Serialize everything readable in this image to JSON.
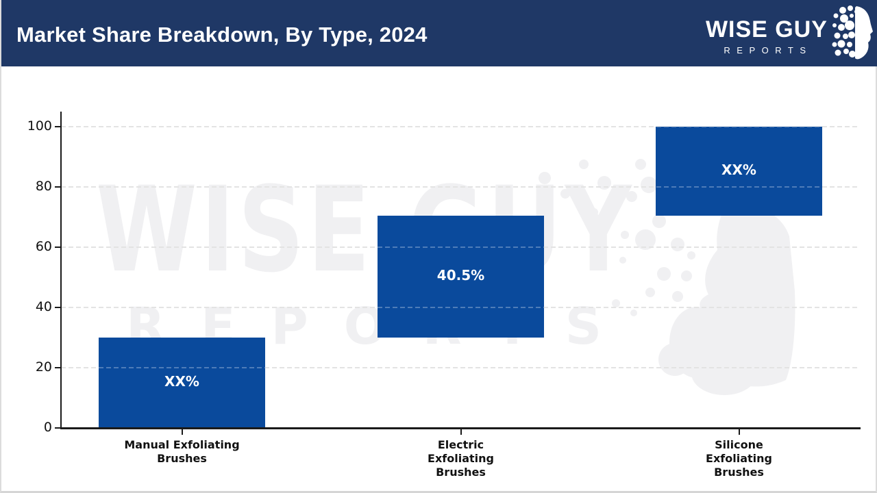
{
  "header": {
    "title": "Market Share Breakdown, By Type, 2024",
    "logo": {
      "brand": "WISE GUY",
      "sub": "REPORTS"
    }
  },
  "watermark": {
    "line1": "WISE GUY",
    "line2": "REPORTS"
  },
  "chart_data": {
    "type": "bar",
    "subtype": "stacked-percentage-waterfall",
    "title": "Market Share Breakdown, By Type, 2024",
    "categories": [
      "Manual Exfoliating\nBrushes",
      "Electric\nExfoliating\nBrushes",
      "Silicone\nExfoliating\nBrushes"
    ],
    "segments": [
      {
        "category": "Manual Exfoliating Brushes",
        "start": 0,
        "end": 30,
        "label": "XX%"
      },
      {
        "category": "Electric Exfoliating Brushes",
        "start": 30,
        "end": 70.5,
        "label": "40.5%"
      },
      {
        "category": "Silicone Exfoliating Brushes",
        "start": 70.5,
        "end": 100,
        "label": "XX%"
      }
    ],
    "ylim": [
      0,
      100
    ],
    "yticks": [
      0,
      20,
      40,
      60,
      80,
      100
    ],
    "xlabel": "",
    "ylabel": "",
    "grid": "dashed-horizontal",
    "legend": "none"
  },
  "colors": {
    "header_bg": "#1f3866",
    "bar_blue": "#0a4a9c",
    "grid": "#d8d8d8",
    "axis": "#1a1a1a",
    "watermark": "#f0f0f2",
    "bar_label": "#ffffff"
  }
}
